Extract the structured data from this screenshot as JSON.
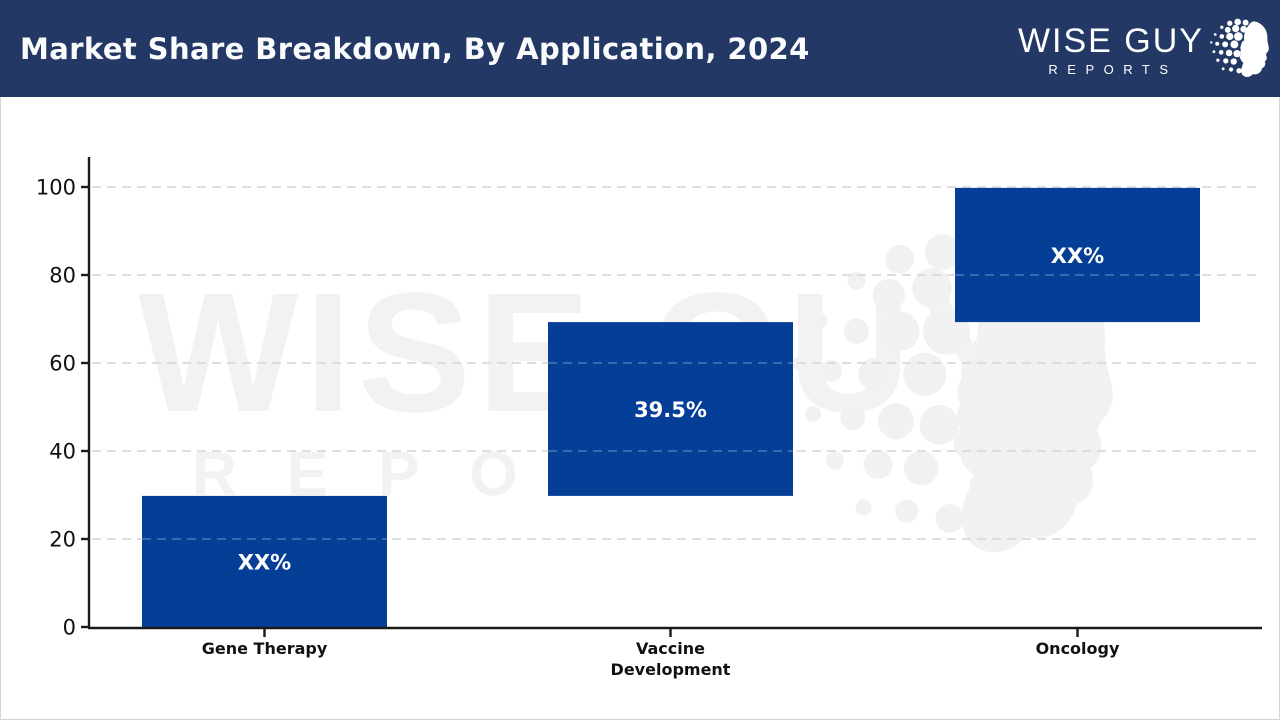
{
  "header": {
    "title": "Market Share Breakdown, By Application, 2024",
    "bg_color": "#233864",
    "brand": {
      "name": "WISE GUY",
      "tagline": "REPORTS"
    }
  },
  "watermark": {
    "line1": "WISE GUY",
    "line2": "REPORTS"
  },
  "chart_data": {
    "type": "bar",
    "subtype": "floating-waterfall",
    "title": "Market Share Breakdown, By Application, 2024",
    "categories": [
      [
        "Gene Therapy"
      ],
      [
        "Vaccine",
        "Development"
      ],
      [
        "Oncology"
      ]
    ],
    "bars": [
      {
        "category": "Gene Therapy",
        "start": 0,
        "end": 29.8,
        "label": "XX%"
      },
      {
        "category": "Vaccine Development",
        "start": 29.8,
        "end": 69.3,
        "label": "39.5%"
      },
      {
        "category": "Oncology",
        "start": 69.3,
        "end": 99.8,
        "label": "XX%"
      }
    ],
    "ylim": [
      0,
      100
    ],
    "yticks": [
      0,
      20,
      40,
      60,
      80,
      100
    ],
    "grid": {
      "axis": "y",
      "style": "dashed",
      "color": "#d9d9d9"
    },
    "legend": "none",
    "bar_color": "#053e96",
    "bar_label_color": "#ffffff",
    "axis_color": "#1a1a1a",
    "tick_label_color": "#111111"
  }
}
